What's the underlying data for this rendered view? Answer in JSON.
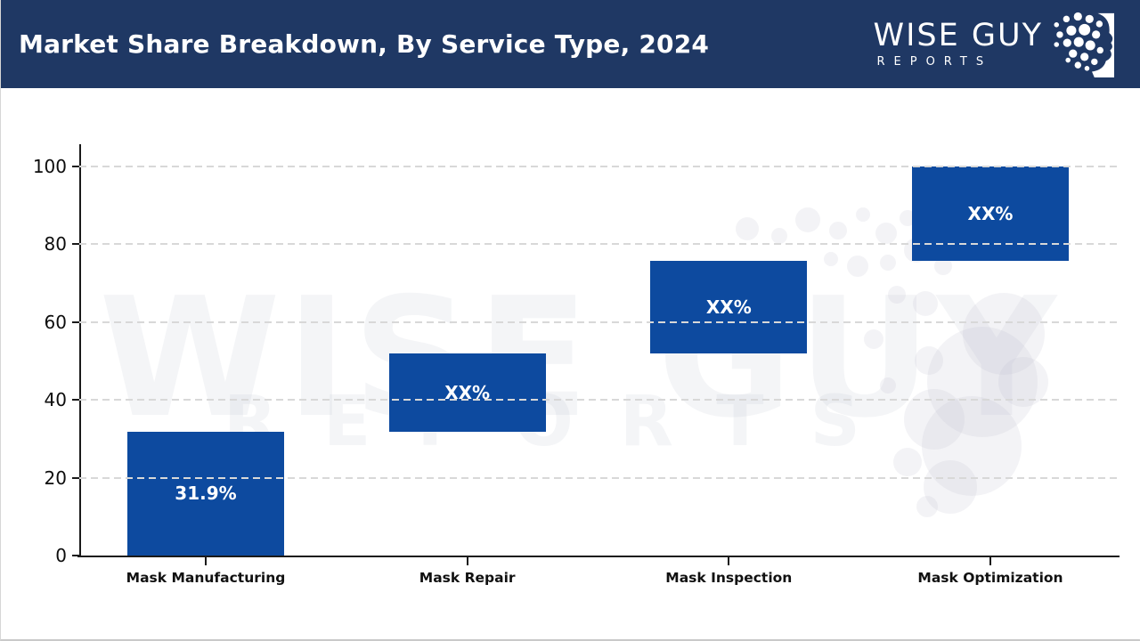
{
  "header": {
    "title": "Market Share Breakdown, By Service Type, 2024",
    "logo": {
      "name_top": "WISE GUY",
      "name_bottom": "REPORTS"
    }
  },
  "watermark": {
    "line1": "WISE GUY",
    "line2": "REPORTS"
  },
  "colors": {
    "header_bg": "#1f3864",
    "bar": "#0d4a9f",
    "grid": "#d8d8d8",
    "axis": "#1a1a1a",
    "bar_label": "#ffffff",
    "title_text": "#ffffff"
  },
  "chart_data": {
    "type": "bar",
    "subtype": "waterfall",
    "title": "Market Share Breakdown, By Service Type, 2024",
    "categories": [
      "Mask Manufacturing",
      "Mask Repair",
      "Mask Inspection",
      "Mask Optimization"
    ],
    "segments": [
      {
        "category": "Mask Manufacturing",
        "start": 0,
        "end": 31.9,
        "label": "31.9%"
      },
      {
        "category": "Mask Repair",
        "start": 31.9,
        "end": 52.0,
        "label": "XX%"
      },
      {
        "category": "Mask Inspection",
        "start": 52.0,
        "end": 75.8,
        "label": "XX%"
      },
      {
        "category": "Mask Optimization",
        "start": 75.8,
        "end": 100,
        "label": "XX%"
      }
    ],
    "xlabel": "",
    "ylabel": "",
    "ylim": [
      0,
      100
    ],
    "yticks": [
      0,
      20,
      40,
      60,
      80,
      100
    ],
    "grid": true,
    "grid_style": "dashed",
    "legend": false,
    "bar_color": "#0d4a9f"
  }
}
